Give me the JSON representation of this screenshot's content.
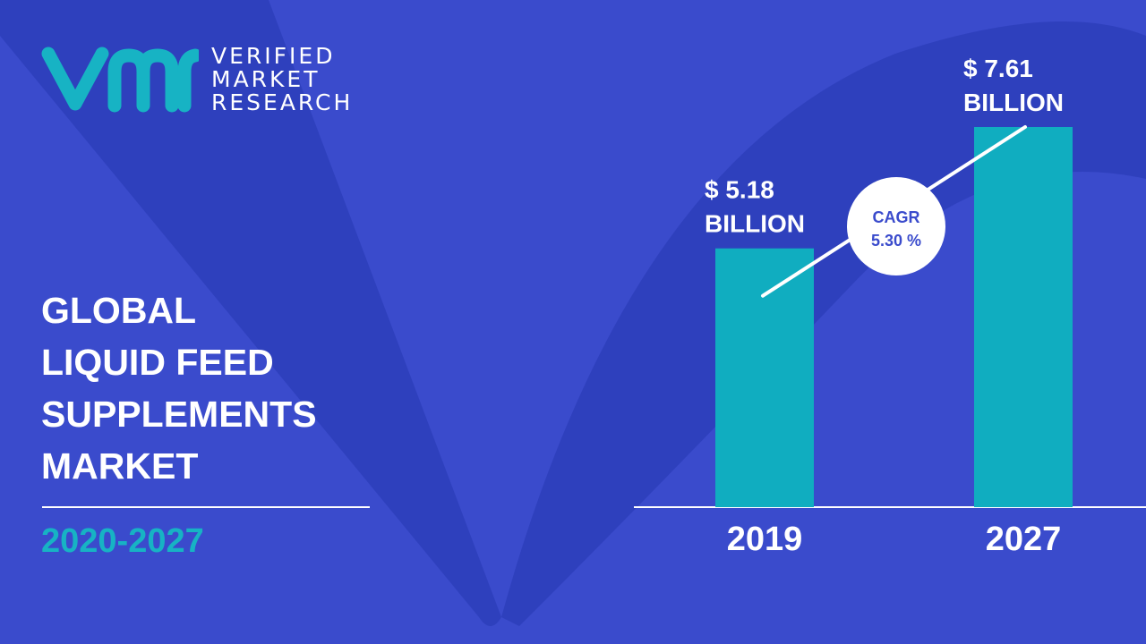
{
  "brand": {
    "line1": "VERIFIED",
    "line2": "MARKET",
    "line3": "RESEARCH",
    "logo_color": "#17b3c4"
  },
  "title_lines": [
    "GLOBAL",
    "LIQUID FEED",
    "SUPPLEMENTS",
    "MARKET"
  ],
  "period": "2020-2027",
  "colors": {
    "background": "#3a4bcc",
    "background_shape": "#2b3cb8",
    "bar": "#10adc0",
    "text": "#ffffff",
    "accent": "#17b3c4"
  },
  "chart_data": {
    "type": "bar",
    "categories": [
      "2019",
      "2027"
    ],
    "values": [
      5.18,
      7.61
    ],
    "value_labels": [
      [
        "$ 5.18",
        "BILLION"
      ],
      [
        "$ 7.61",
        "BILLION"
      ]
    ],
    "unit": "USD billion",
    "cagr_label": "CAGR",
    "cagr_value": "5.30 %",
    "title": "",
    "xlabel": "",
    "ylabel": "",
    "grid": false,
    "legend": false
  }
}
